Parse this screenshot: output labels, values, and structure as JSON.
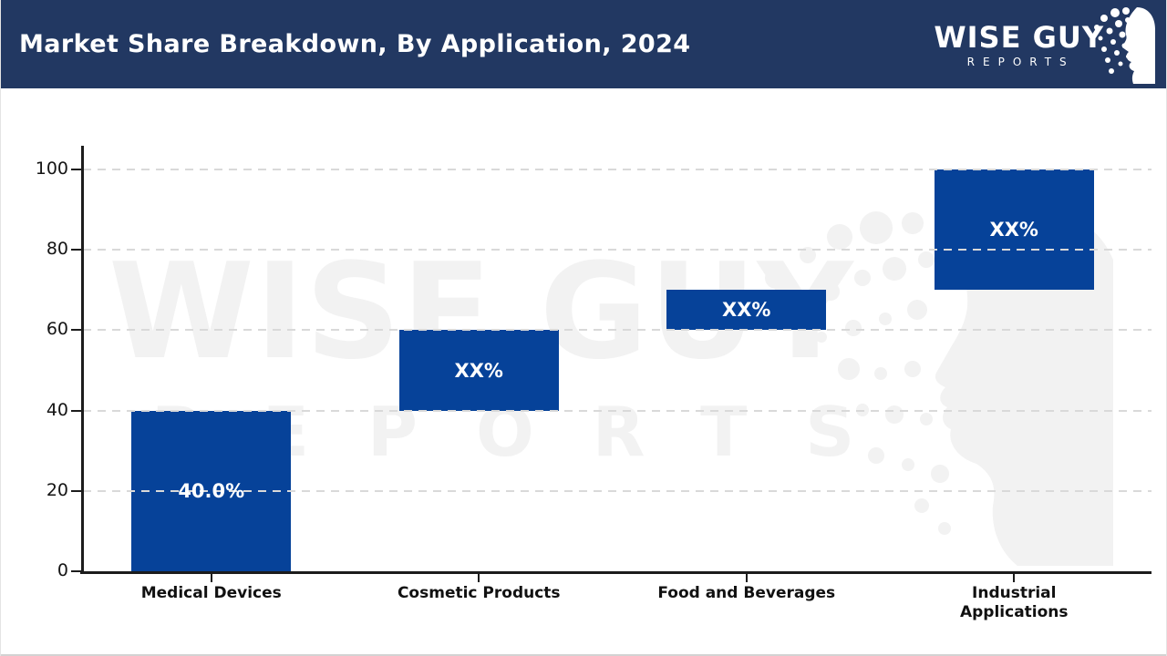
{
  "header": {
    "title": "Market Share Breakdown, By Application, 2024",
    "logo": {
      "line1": "WISE GUY",
      "line2": "REPORTS"
    }
  },
  "watermark": {
    "line1": "WISE GUY",
    "line2": "REPORTS"
  },
  "colors": {
    "header_bg": "#223862",
    "bar": "#064299",
    "bar_label_text": "#ffffff",
    "axis": "#1c1c1c",
    "gridline": "#d9d9d9",
    "watermark": "#f2f2f2",
    "title_text": "#ffffff",
    "category_text": "#111111"
  },
  "chart_data": {
    "type": "bar",
    "variant": "waterfall",
    "title": "Market Share Breakdown, By Application, 2024",
    "categories": [
      "Medical Devices",
      "Cosmetic Products",
      "Food and Beverages",
      "Industrial Applications"
    ],
    "segments": [
      {
        "category": "Medical Devices",
        "start": 0,
        "end": 40,
        "label": "40.0%"
      },
      {
        "category": "Cosmetic Products",
        "start": 40,
        "end": 60,
        "label": "XX%"
      },
      {
        "category": "Food and Beverages",
        "start": 60,
        "end": 70,
        "label": "XX%"
      },
      {
        "category": "Industrial Applications",
        "start": 70,
        "end": 100,
        "label": "XX%"
      }
    ],
    "yticks": [
      0,
      20,
      40,
      60,
      80,
      100
    ],
    "ylim": [
      0,
      100
    ],
    "xlabel": "",
    "ylabel": "",
    "grid": "horizontal-dashed",
    "legend": "none"
  }
}
